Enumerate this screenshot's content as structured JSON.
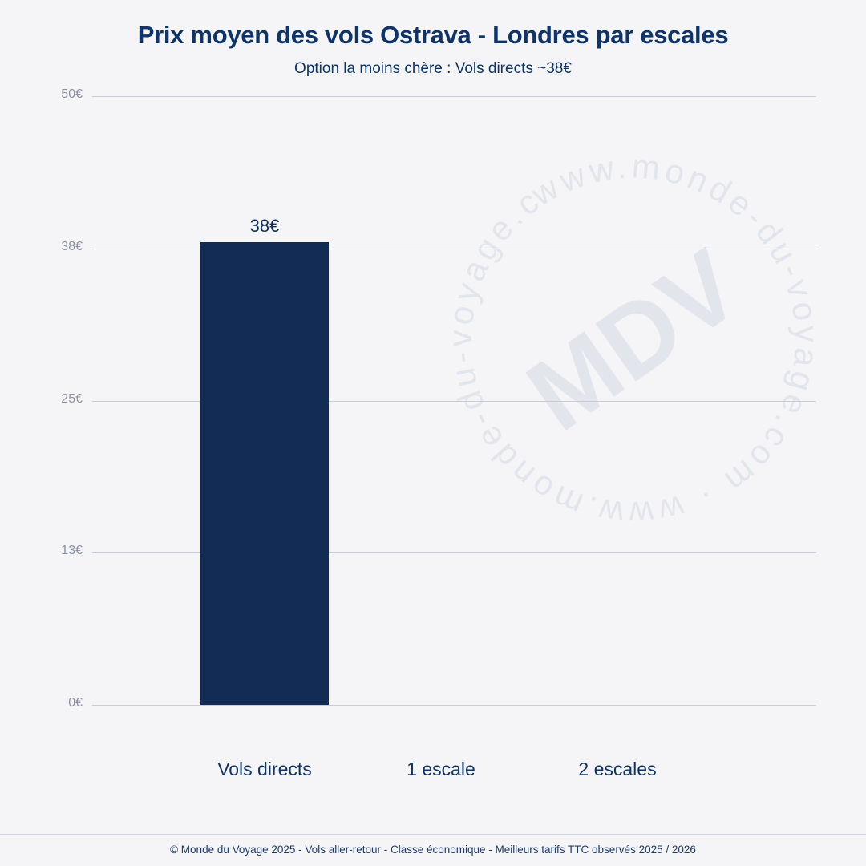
{
  "page": {
    "background": "#f5f5f7"
  },
  "header": {
    "title": "Prix moyen des vols Ostrava - Londres par escales",
    "subtitle": "Option la moins chère : Vols directs ~38€"
  },
  "chart_data": {
    "type": "bar",
    "title": "Prix moyen des vols Ostrava - Londres par escales",
    "subtitle": "Option la moins chère : Vols directs ~38€",
    "categories": [
      "Vols directs",
      "1 escale",
      "2 escales"
    ],
    "values": [
      38,
      null,
      null
    ],
    "bar_labels": [
      "38€",
      null,
      null
    ],
    "ylim": [
      0,
      50
    ],
    "yticks": [
      {
        "pos": 0,
        "label": "0€"
      },
      {
        "pos": 12.5,
        "label": "13€"
      },
      {
        "pos": 25,
        "label": "25€"
      },
      {
        "pos": 37.5,
        "label": "38€"
      },
      {
        "pos": 50,
        "label": "50€"
      }
    ],
    "xlabel": "",
    "ylabel": "",
    "grid": true,
    "legend": "none",
    "bar_color": "#132c55",
    "gridline_color": "#c7ccd7",
    "tick_color": "#8b93a3"
  },
  "watermark": {
    "ring_text": "www.monde-du-voyage.com · www.monde-du-voyage.com ·",
    "center_text": "MDV"
  },
  "footer": {
    "text": "© Monde du Voyage 2025 - Vols aller-retour - Classe économique - Meilleurs tarifs TTC observés 2025 / 2026"
  }
}
